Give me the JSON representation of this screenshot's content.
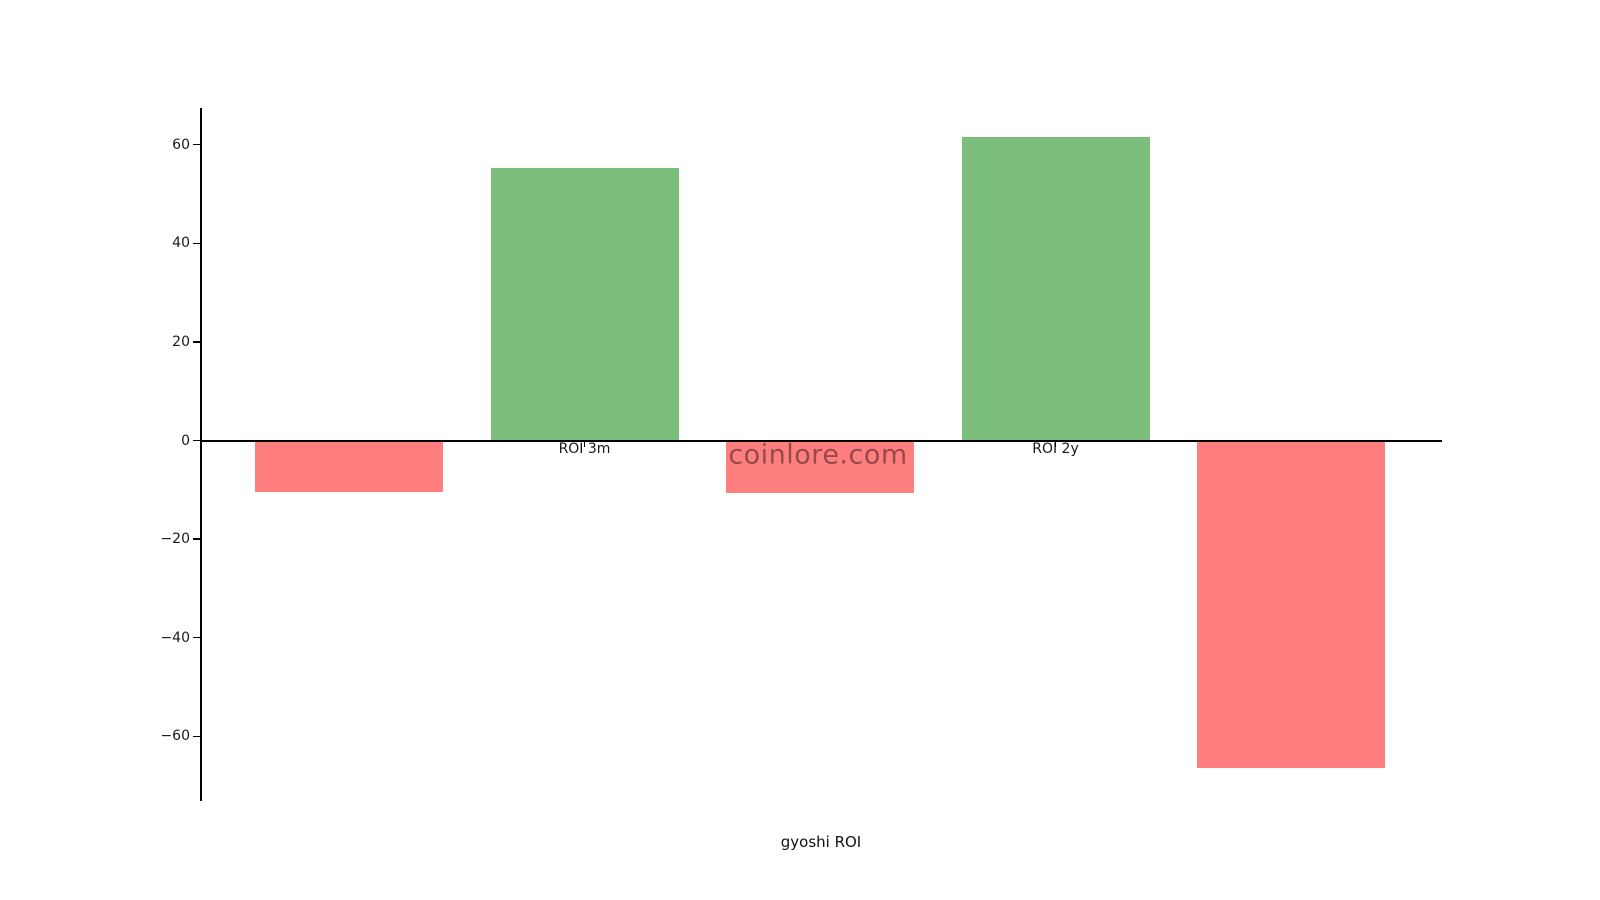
{
  "chart_data": {
    "type": "bar",
    "categories": [
      "",
      "ROI 3m",
      "",
      "ROI 2y",
      ""
    ],
    "values": [
      -10.4,
      55.3,
      -10.6,
      61.6,
      -66.5
    ],
    "title": "",
    "xlabel": "gyoshi ROI",
    "ylabel": "",
    "ylim": [
      -73,
      68
    ],
    "yticks": [
      60,
      40,
      20,
      0,
      -20,
      -40,
      -60
    ],
    "ytick_labels": [
      "60",
      "40",
      "20",
      "0",
      "−20",
      "−40",
      "−60"
    ],
    "grid": false,
    "legend": null,
    "colors": {
      "positive": "#7cbe7c",
      "negative": "#ff7f7f",
      "axis": "#000000",
      "tick_text": "#1a1a1a"
    }
  },
  "watermark": {
    "text": "coinlore.com"
  }
}
